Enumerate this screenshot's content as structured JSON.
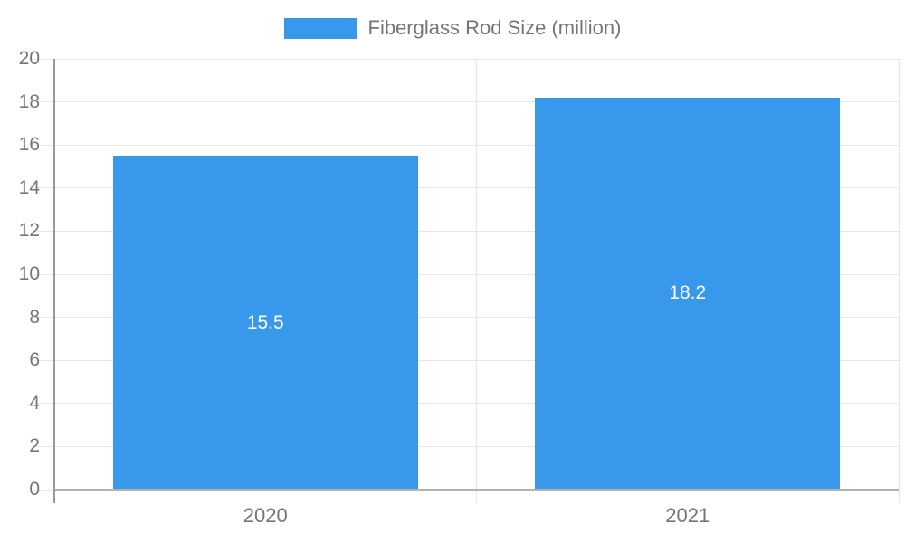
{
  "legend": {
    "label": "Fiberglass Rod Size (million)",
    "swatch_color": "#3899ec"
  },
  "chart_data": {
    "type": "bar",
    "title": "Fiberglass Rod Size (million)",
    "categories": [
      "2020",
      "2021"
    ],
    "series": [
      {
        "name": "Fiberglass Rod Size (million)",
        "values": [
          15.5,
          18.2
        ],
        "value_labels": [
          "15.5",
          "18.2"
        ],
        "color": "#3899ec"
      }
    ],
    "xlabel": "",
    "ylabel": "",
    "ylim": [
      0,
      20
    ],
    "ytick_step": 2,
    "grid": true,
    "legend_position": "top",
    "value_label_color": "#ffffff",
    "colors": {
      "grid_line": "#e6e6e6",
      "axis_line": "#b3b3b3",
      "y_axis_line": "#999999",
      "tick_text": "#757575"
    }
  }
}
